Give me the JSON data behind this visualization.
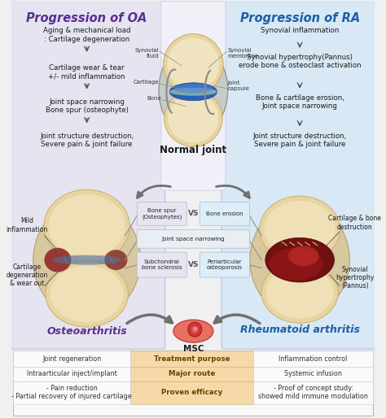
{
  "oa_title": "Progression of OA",
  "ra_title": "Progression of RA",
  "purple_title": "#5c2d91",
  "blue_title": "#1a5fa8",
  "oa_bg": "#e6e4f0",
  "ra_bg": "#d8e8f4",
  "oa_steps": [
    "Aging & mechanical load\n: Cartilage degeneration",
    "Cartilage wear & tear\n+/- mild inflammation",
    "Joint space narrowing\nBone spur (osteophyte)",
    "Joint structure destruction,\nSevere pain & joint failure"
  ],
  "ra_steps": [
    "Synovial inflammation",
    "Synovial hypertrophy(Pannus)\nerode bone & osteoclast activation",
    "Bone & cartilage erosion,\nJoint space narrowing",
    "Joint structure destruction,\nSevere pain & joint failure"
  ],
  "normal_joint_label": "Normal joint",
  "oa_label": "Osteoarthritis",
  "ra_label": "Rheumatoid arthritis",
  "msc_label": "MSC",
  "table_headers": [
    "Treatment purpose",
    "Major route",
    "Proven efficacy"
  ],
  "table_oa": [
    "Joint regeneration",
    "Intraarticular inject/implant",
    "- Pain reduction\n- Partial recovery of injured cartilage"
  ],
  "table_ra": [
    "Inflammation control",
    "Systemic infusion",
    "- Proof of concept study:\nshowed mild immune modulation"
  ],
  "table_header_bg": "#f5d9a8",
  "bone_color": "#e8d4a0",
  "bone_edge": "#c8b070",
  "synovial_blue": "#2255a0",
  "synovial_light": "#4488cc",
  "cartilage_color": "#c8ddb8",
  "oa_inflammation": "#8B2020",
  "ra_pannus": "#6B1010",
  "arrow_gray": "#707070"
}
